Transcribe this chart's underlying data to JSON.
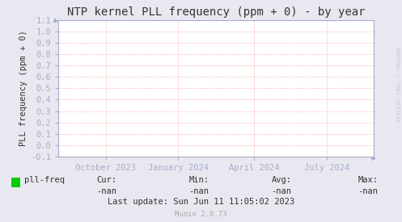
{
  "title": "NTP kernel PLL frequency (ppm + 0) - by year",
  "ylabel": "PLL frequency (ppm + 0)",
  "background_color": "#e8e8f0",
  "plot_bg_color": "#ffffff",
  "grid_color": "#ff9999",
  "grid_style": ":",
  "ylim": [
    -0.1,
    1.1
  ],
  "yticks": [
    -0.1,
    0.0,
    0.1,
    0.2,
    0.3,
    0.4,
    0.5,
    0.6,
    0.7,
    0.8,
    0.9,
    1.0,
    1.1
  ],
  "ytick_labels": [
    "-0.1",
    "0.0",
    "0.1",
    "0.2",
    "0.3",
    "0.4",
    "0.5",
    "0.6",
    "0.7",
    "0.8",
    "0.9",
    "1.0",
    "1.1"
  ],
  "xtick_labels": [
    "October 2023",
    "January 2024",
    "April 2024",
    "July 2024"
  ],
  "xtick_positions": [
    0.15,
    0.38,
    0.62,
    0.85
  ],
  "legend_label": "pll-freq",
  "legend_color": "#00cc00",
  "cur_label": "Cur:",
  "min_label": "Min:",
  "avg_label": "Avg:",
  "max_label": "Max:",
  "cur_val": "-nan",
  "min_val": "-nan",
  "avg_val": "-nan",
  "max_val": "-nan",
  "last_update": "Last update: Sun Jun 11 11:05:02 2023",
  "munin_version": "Munin 2.0.73",
  "watermark": "RRDTOOL / TOBI OETIKER",
  "title_fontsize": 10,
  "axis_label_fontsize": 7.5,
  "tick_fontsize": 7.5,
  "footer_fontsize": 7.5,
  "munin_fontsize": 6.5,
  "watermark_fontsize": 5,
  "spine_color": "#aaaacc",
  "arrow_color": "#aaaacc"
}
